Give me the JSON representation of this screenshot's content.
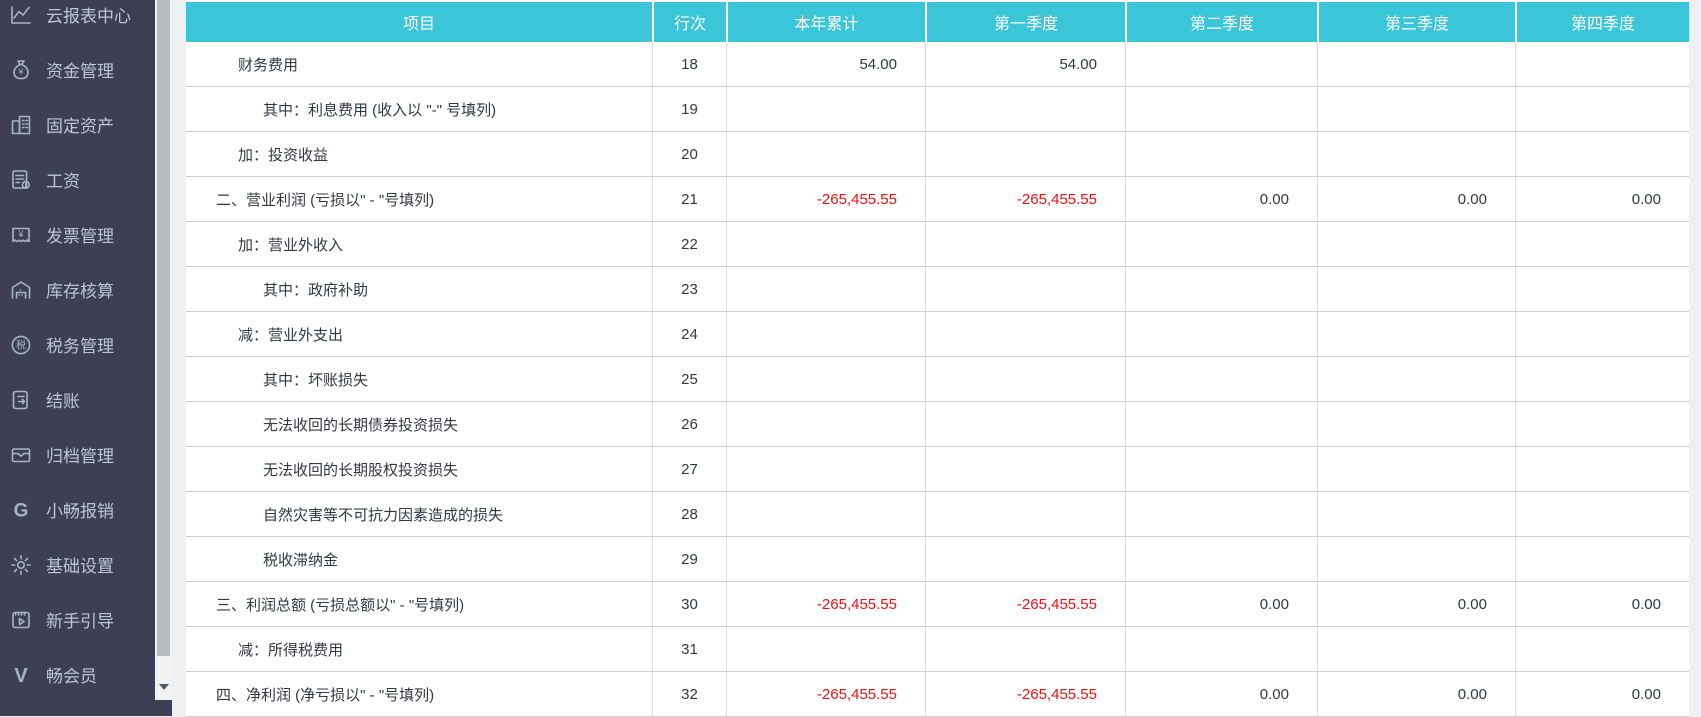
{
  "sidebar": {
    "items": [
      {
        "id": "cloud-report-center",
        "label": "云报表中心",
        "icon": "line-chart-icon"
      },
      {
        "id": "funds-management",
        "label": "资金管理",
        "icon": "money-bag-icon"
      },
      {
        "id": "fixed-assets",
        "label": "固定资产",
        "icon": "building-icon"
      },
      {
        "id": "payroll",
        "label": "工资",
        "icon": "calculator-icon"
      },
      {
        "id": "invoice-management",
        "label": "发票管理",
        "icon": "invoice-icon"
      },
      {
        "id": "inventory-accounting",
        "label": "库存核算",
        "icon": "warehouse-icon"
      },
      {
        "id": "tax-management",
        "label": "税务管理",
        "icon": "tax-icon"
      },
      {
        "id": "closing",
        "label": "结账",
        "icon": "ledger-icon"
      },
      {
        "id": "archive-management",
        "label": "归档管理",
        "icon": "archive-icon"
      },
      {
        "id": "xiaochang-expense",
        "label": "小畅报销",
        "icon": "g-logo-icon"
      },
      {
        "id": "basic-settings",
        "label": "基础设置",
        "icon": "gear-icon"
      },
      {
        "id": "beginner-guide",
        "label": "新手引导",
        "icon": "video-guide-icon"
      },
      {
        "id": "chang-member",
        "label": "畅会员",
        "icon": "v-member-icon"
      }
    ]
  },
  "table": {
    "columns": [
      "项目",
      "行次",
      "本年累计",
      "第一季度",
      "第二季度",
      "第三季度",
      "第四季度"
    ],
    "rows": [
      {
        "item": "财务费用",
        "indent": 1,
        "line": "18",
        "values": [
          "54.00",
          "54.00",
          "",
          "",
          ""
        ]
      },
      {
        "item": "其中：利息费用 (收入以 \"-\" 号填列)",
        "indent": 2,
        "line": "19",
        "values": [
          "",
          "",
          "",
          "",
          ""
        ]
      },
      {
        "item": "加：投资收益",
        "indent": 1,
        "line": "20",
        "values": [
          "",
          "",
          "",
          "",
          ""
        ]
      },
      {
        "item": "二、营业利润 (亏损以\" - \"号填列)",
        "indent": 0,
        "line": "21",
        "values": [
          "-265,455.55",
          "-265,455.55",
          "0.00",
          "0.00",
          "0.00"
        ]
      },
      {
        "item": "加：营业外收入",
        "indent": 1,
        "line": "22",
        "values": [
          "",
          "",
          "",
          "",
          ""
        ]
      },
      {
        "item": "其中：政府补助",
        "indent": 2,
        "line": "23",
        "values": [
          "",
          "",
          "",
          "",
          ""
        ]
      },
      {
        "item": "减：营业外支出",
        "indent": 1,
        "line": "24",
        "values": [
          "",
          "",
          "",
          "",
          ""
        ]
      },
      {
        "item": "其中：坏账损失",
        "indent": 2,
        "line": "25",
        "values": [
          "",
          "",
          "",
          "",
          ""
        ]
      },
      {
        "item": "无法收回的长期债券投资损失",
        "indent": 2,
        "line": "26",
        "values": [
          "",
          "",
          "",
          "",
          ""
        ]
      },
      {
        "item": "无法收回的长期股权投资损失",
        "indent": 2,
        "line": "27",
        "values": [
          "",
          "",
          "",
          "",
          ""
        ]
      },
      {
        "item": "自然灾害等不可抗力因素造成的损失",
        "indent": 2,
        "line": "28",
        "values": [
          "",
          "",
          "",
          "",
          ""
        ]
      },
      {
        "item": "税收滞纳金",
        "indent": 2,
        "line": "29",
        "values": [
          "",
          "",
          "",
          "",
          ""
        ]
      },
      {
        "item": "三、利润总额 (亏损总额以\" - \"号填列)",
        "indent": 0,
        "line": "30",
        "values": [
          "-265,455.55",
          "-265,455.55",
          "0.00",
          "0.00",
          "0.00"
        ]
      },
      {
        "item": "减：所得税费用",
        "indent": 1,
        "line": "31",
        "values": [
          "",
          "",
          "",
          "",
          ""
        ]
      },
      {
        "item": "四、净利润 (净亏损以\" - \"号填列)",
        "indent": 0,
        "line": "32",
        "values": [
          "-265,455.55",
          "-265,455.55",
          "0.00",
          "0.00",
          "0.00"
        ]
      }
    ]
  },
  "colors": {
    "sidebar_bg": "#3d3f55",
    "sidebar_text": "#bdc6d6",
    "header_bg": "#3bc5d8",
    "header_text": "#ffffff",
    "negative_value": "#f01111",
    "body_text": "#333740"
  }
}
